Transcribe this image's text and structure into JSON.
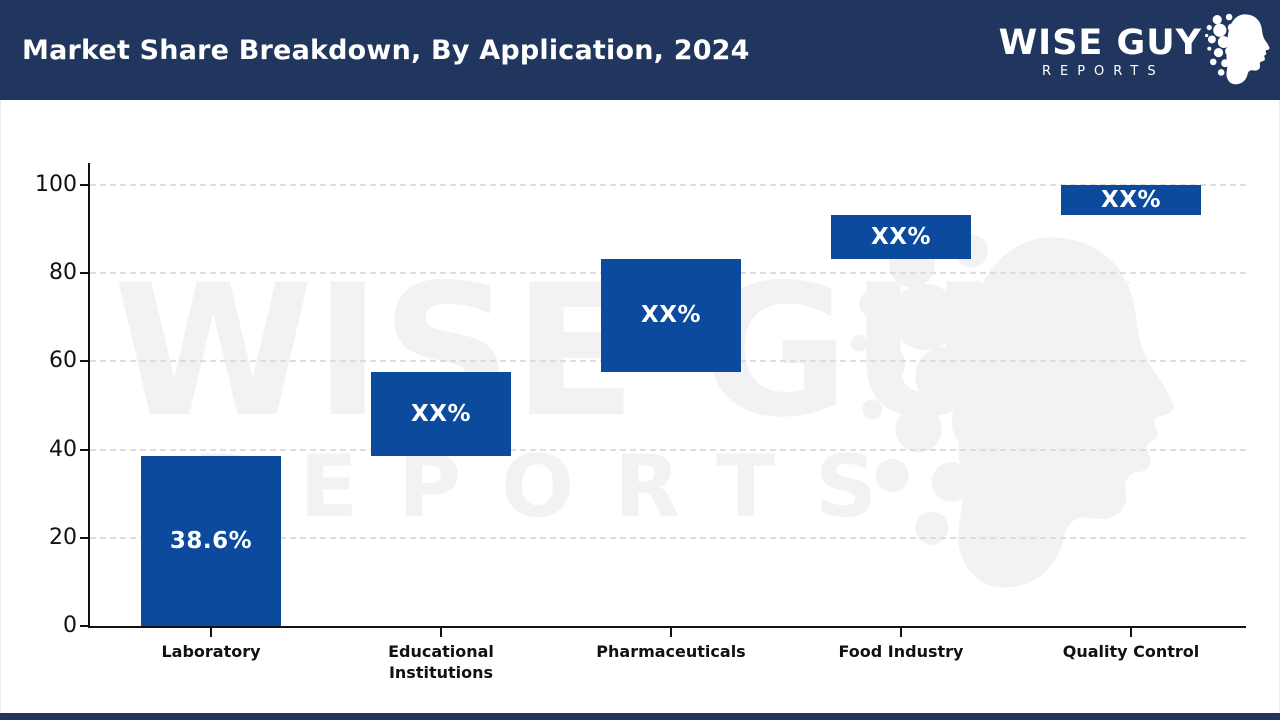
{
  "header": {
    "title": "Market Share Breakdown, By Application, 2024",
    "logo": {
      "name": "WISE GUY",
      "tagline": "REPORTS"
    }
  },
  "watermark": {
    "name": "WISE GUY",
    "tagline": "REPORTS"
  },
  "colors": {
    "header_bg": "#20365e",
    "footer_bg": "#20365e",
    "bar": "#0c4a9e",
    "bar_label": "#ffffff",
    "grid": "#dddddd",
    "axis": "#111111",
    "watermark": "#f2f2f4"
  },
  "chart_data": {
    "type": "bar",
    "subtype": "waterfall",
    "title": "Market Share Breakdown, By Application, 2024",
    "categories": [
      "Laboratory",
      "Educational Institutions",
      "Pharmaceuticals",
      "Food Industry",
      "Quality Control"
    ],
    "segments": [
      {
        "category": "Laboratory",
        "start": 0,
        "end": 38.6,
        "label": "38.6%"
      },
      {
        "category": "Educational Institutions",
        "start": 38.6,
        "end": 57.6,
        "label": "XX%"
      },
      {
        "category": "Pharmaceuticals",
        "start": 57.6,
        "end": 83.3,
        "label": "XX%"
      },
      {
        "category": "Food Industry",
        "start": 83.3,
        "end": 93.3,
        "label": "XX%"
      },
      {
        "category": "Quality Control",
        "start": 93.3,
        "end": 100,
        "label": "XX%"
      }
    ],
    "yticks": [
      "0",
      "20",
      "40",
      "60",
      "80",
      "100"
    ],
    "ylim": [
      0,
      100
    ],
    "xlabel": "",
    "ylabel": "",
    "grid": "horizontal-dashed",
    "legend": "none"
  }
}
